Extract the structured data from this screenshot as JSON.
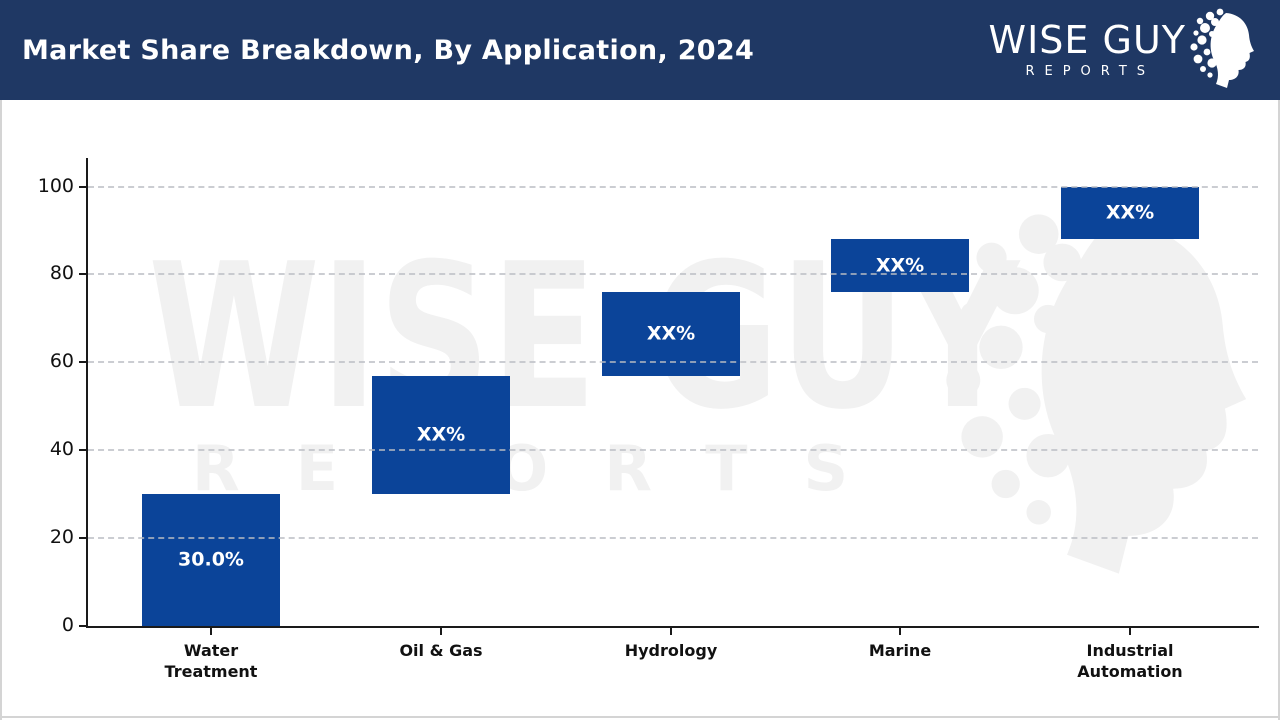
{
  "header": {
    "title": "Market Share Breakdown, By Application, 2024",
    "logo": {
      "line1": "WISE GUY",
      "line2": "REPORTS"
    }
  },
  "watermark": {
    "line1": "WISE GUY",
    "line2": "REPORTS"
  },
  "chart_data": {
    "type": "bar",
    "subtype": "waterfall",
    "title": "Market Share Breakdown, By Application, 2024",
    "categories": [
      "Water Treatment",
      "Oil & Gas",
      "Hydrology",
      "Marine",
      "Industrial Automation"
    ],
    "series": [
      {
        "name": "Market Share",
        "segments": [
          {
            "category": "Water Treatment",
            "start": 0,
            "end": 30,
            "size": 30,
            "label": "30.0%"
          },
          {
            "category": "Oil & Gas",
            "start": 30,
            "end": 57,
            "size": 27,
            "label": "XX%"
          },
          {
            "category": "Hydrology",
            "start": 57,
            "end": 76,
            "size": 19,
            "label": "XX%"
          },
          {
            "category": "Marine",
            "start": 76,
            "end": 88,
            "size": 12,
            "label": "XX%"
          },
          {
            "category": "Industrial Automation",
            "start": 88,
            "end": 100,
            "size": 12,
            "label": "XX%"
          }
        ]
      }
    ],
    "xlabel": "",
    "ylabel": "",
    "ylim": [
      0,
      100
    ],
    "yticks": [
      0,
      20,
      40,
      60,
      80,
      100
    ],
    "grid": "horizontal-dashed",
    "legend": "none",
    "colors": {
      "bar": "#0b4499",
      "bar_label": "#ffffff",
      "header_bg": "#1f3864",
      "grid": "#babcc3",
      "axis": "#1a1a1a",
      "watermark": "#f1f1f1"
    }
  }
}
